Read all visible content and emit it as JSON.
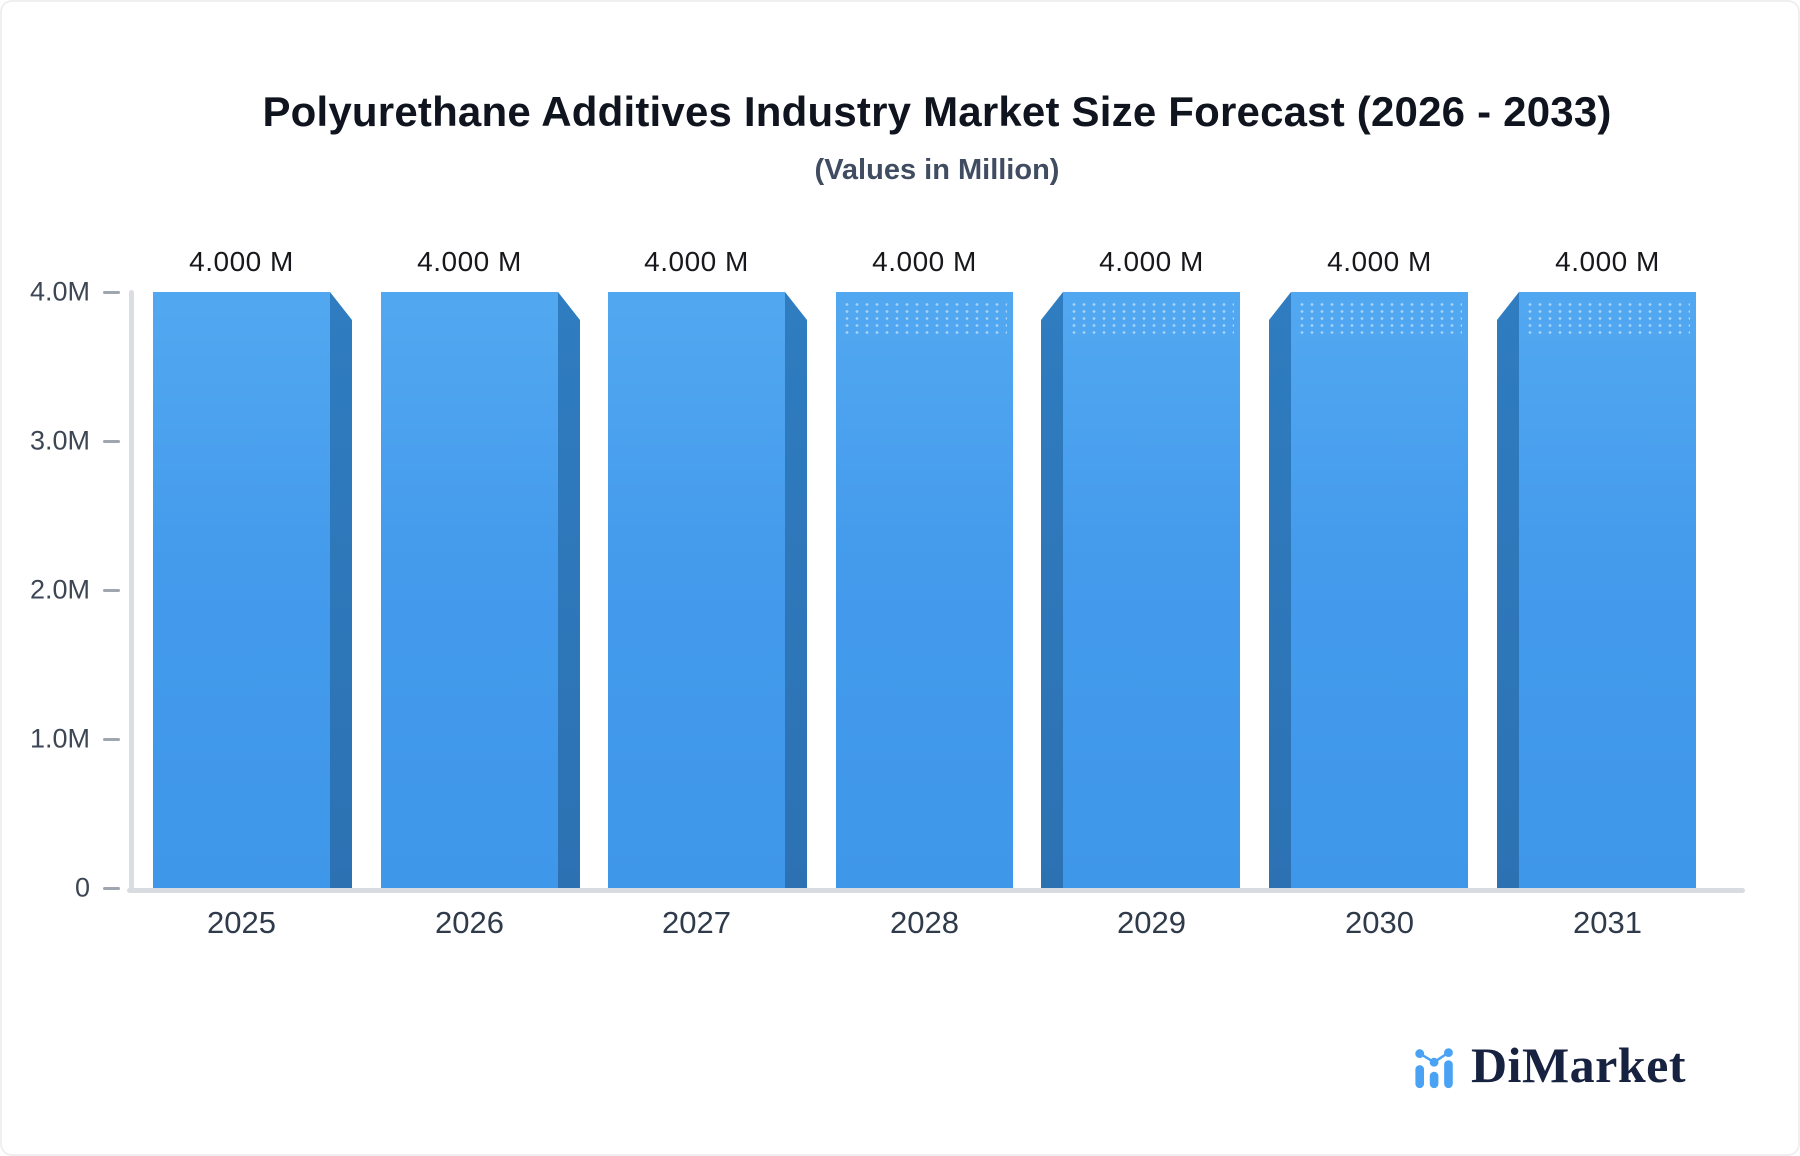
{
  "chart_data": {
    "type": "bar",
    "title": "Polyurethane Additives Industry Market Size Forecast (2026 - 2033)",
    "subtitle": "(Values in Million)",
    "categories": [
      "2025",
      "2026",
      "2027",
      "2028",
      "2029",
      "2030",
      "2031"
    ],
    "values": [
      4.0,
      4.0,
      4.0,
      4.0,
      4.0,
      4.0,
      4.0
    ],
    "value_labels": [
      "4.000 M",
      "4.000 M",
      "4.000 M",
      "4.000 M",
      "4.000 M",
      "4.000 M",
      "4.000 M"
    ],
    "xlabel": "",
    "ylabel": "",
    "ylim": [
      0,
      4.0
    ],
    "ytick_labels": [
      "4.0M",
      "3.0M",
      "2.0M",
      "1.0M",
      "0"
    ],
    "grid": false,
    "legend": false,
    "style": "3d-perspective-bars",
    "bar_face_color": "#449bec",
    "bar_side_color": "#2e78b8",
    "axis_line_color": "#d9dce1",
    "tick_dash_color": "#9fa6b0",
    "value_label_color": "#17181c",
    "axis_label_color": "#3d4654"
  },
  "branding": {
    "logo_text": "DiMarket",
    "logo_icon": "bar-chart-logo-icon",
    "logo_text_color": "#16223f",
    "logo_icon_color": "#4aa2f5"
  }
}
